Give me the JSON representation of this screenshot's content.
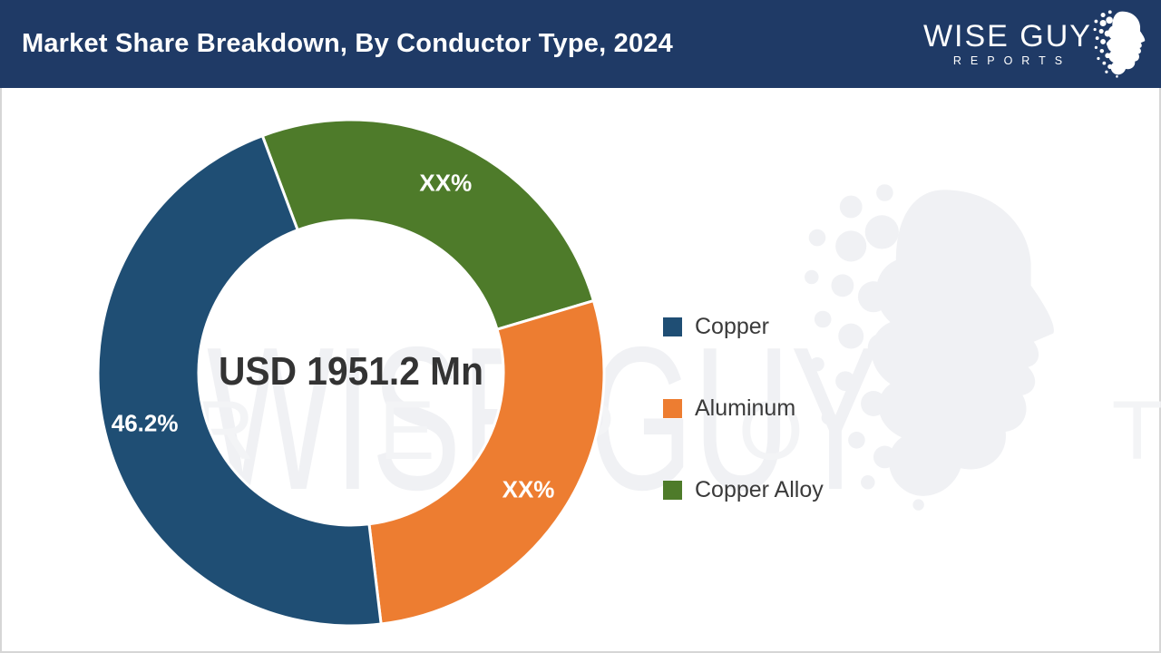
{
  "header": {
    "title": "Market Share Breakdown, By Conductor Type, 2024",
    "logo_line1": "WISE GUY",
    "logo_line2": "REPORTS"
  },
  "watermark": {
    "line1": "WISE GUY",
    "line2": "R E P O R T S"
  },
  "chart_data": {
    "type": "pie",
    "subtype": "donut",
    "title": "Market Share Breakdown, By Conductor Type, 2024",
    "center_label": "USD 1951.2 Mn",
    "units": "percent share",
    "start_angle_deg": -20.5,
    "clockwise": true,
    "slices": [
      {
        "name": "Copper Alloy",
        "value_pct": 26.1,
        "label": "XX%",
        "color": "#4e7b2a"
      },
      {
        "name": "Aluminum",
        "value_pct": 27.7,
        "label": "XX%",
        "color": "#ed7d31"
      },
      {
        "name": "Copper",
        "value_pct": 46.2,
        "label": "46.2%",
        "color": "#1f4e74"
      }
    ],
    "legend": [
      {
        "label": "Copper",
        "color": "#1f4e74"
      },
      {
        "label": "Aluminum",
        "color": "#ed7d31"
      },
      {
        "label": "Copper Alloy",
        "color": "#4e7b2a"
      }
    ],
    "legend_position": "right"
  },
  "colors": {
    "header_bg": "#1f3a66",
    "header_text": "#ffffff",
    "center_text": "#333333",
    "legend_text": "#3a3a3a",
    "slice_label_text": "#ffffff",
    "watermark": "#f0f1f4",
    "border": "#d6d6d6"
  }
}
